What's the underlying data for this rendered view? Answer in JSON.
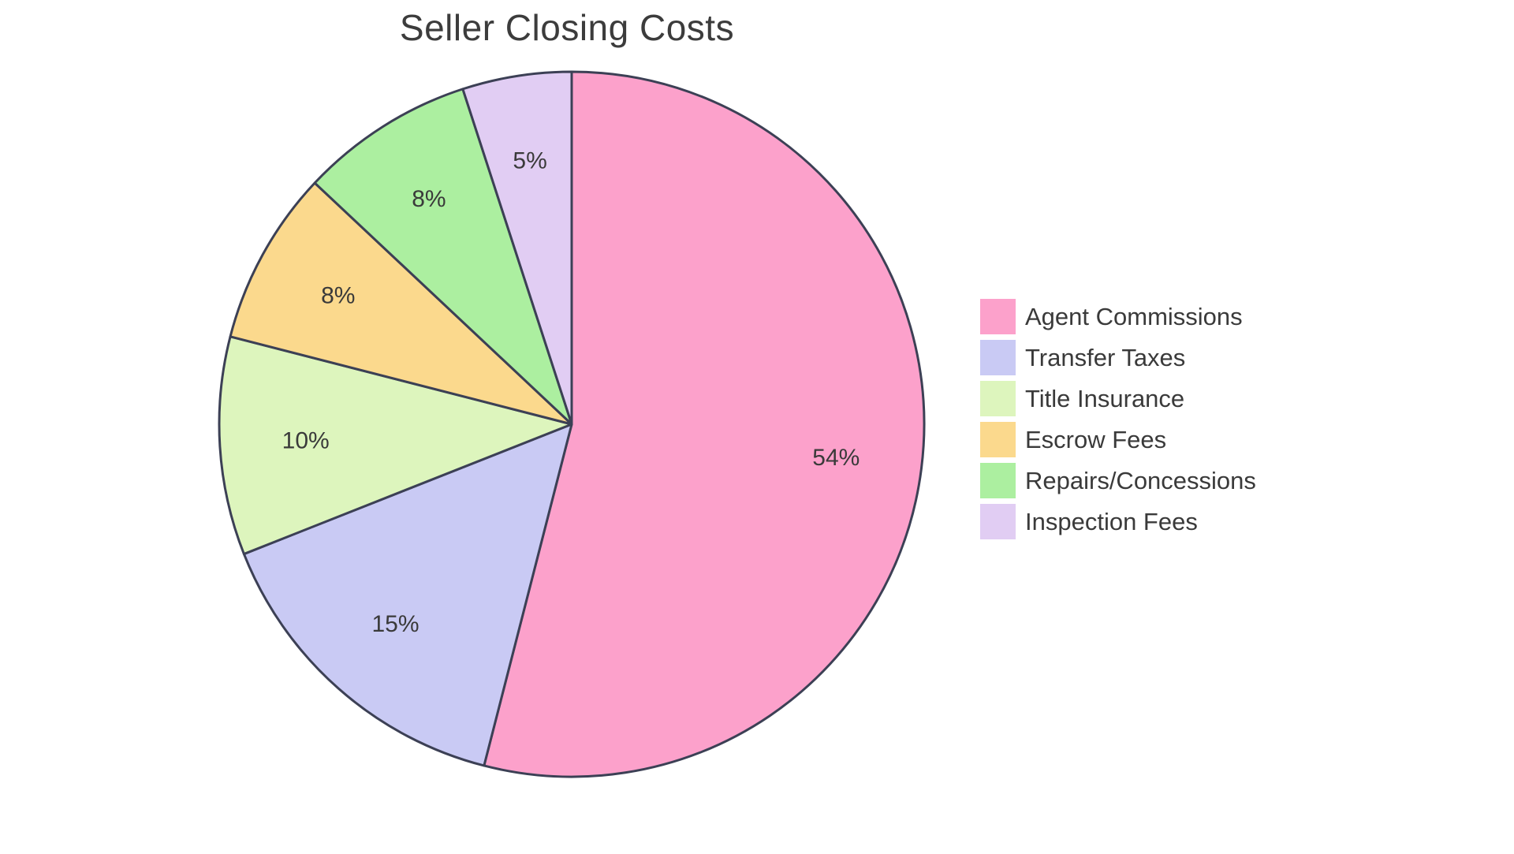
{
  "page": {
    "background": "#FFFFFF"
  },
  "chart_data": {
    "type": "pie",
    "title": "Seller Closing Costs",
    "labels": [
      "Agent Commissions",
      "Transfer Taxes",
      "Title Insurance",
      "Escrow Fees",
      "Repairs/Concessions",
      "Inspection Fees"
    ],
    "values": [
      54,
      15,
      10,
      8,
      8,
      5
    ],
    "value_labels": [
      "54%",
      "15%",
      "10%",
      "8%",
      "8%",
      "5%"
    ],
    "colors": [
      "#FCA1CB",
      "#C9CAF4",
      "#DDF5BD",
      "#FBD98D",
      "#ACEFA0",
      "#E1CDF3"
    ],
    "stroke_color": "#3C4055",
    "label_color": "#3A3A3A",
    "title_color": "#3C3C3C",
    "legend_position": "right",
    "start_angle_deg": 0,
    "direction": "clockwise",
    "grid": false
  }
}
